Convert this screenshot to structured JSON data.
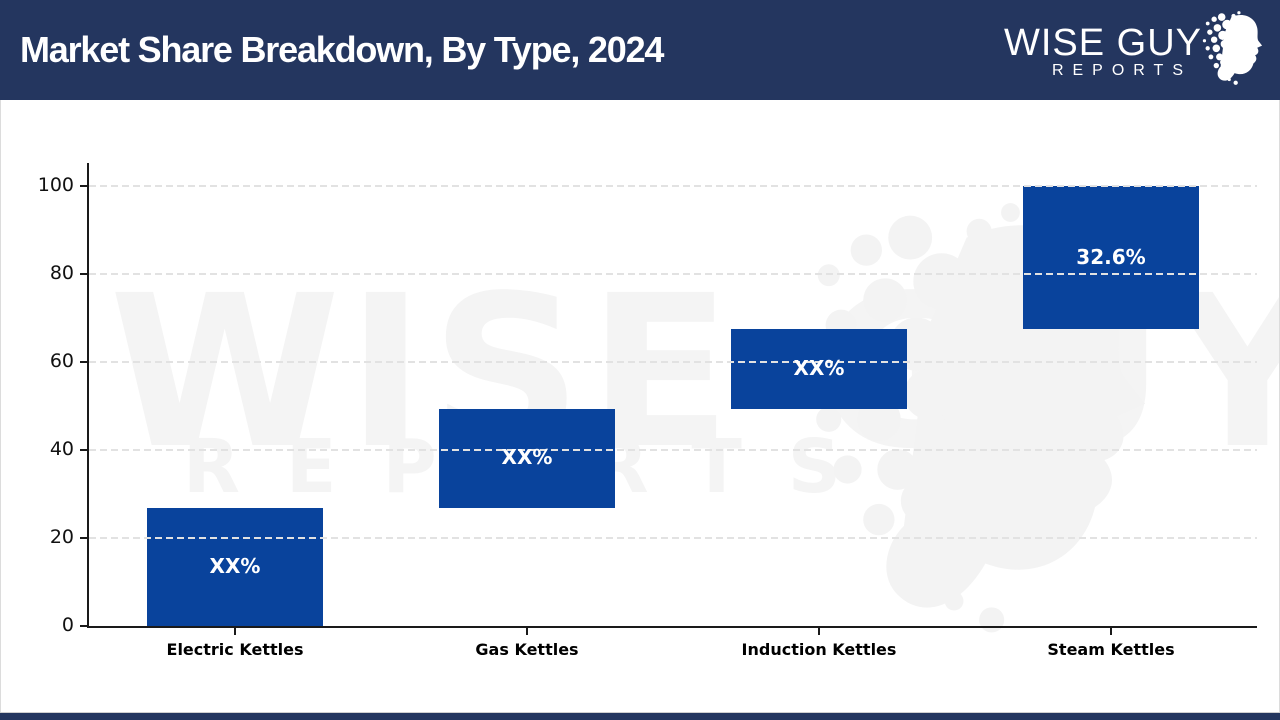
{
  "header": {
    "title": "Market Share Breakdown, By Type, 2024",
    "logo": {
      "line1": "WISE GUY",
      "line2": "REPORTS"
    }
  },
  "colors": {
    "header_navy": "#24365f",
    "bar_blue": "#09439c",
    "gridline": "#e2e2e2",
    "axis": "#1a1a1a",
    "watermark": "#f4f4f4",
    "title_text": "#ffffff",
    "bar_label_text": "#ffffff"
  },
  "watermark": {
    "line1": "WISE GUY",
    "line2": "REPORTS"
  },
  "chart_data": {
    "type": "bar",
    "subtype": "floating-waterfall",
    "title": "Market Share Breakdown, By Type, 2024",
    "categories": [
      "Electric Kettles",
      "Gas Kettles",
      "Induction Kettles",
      "Steam Kettles"
    ],
    "segments": [
      {
        "category": "Electric Kettles",
        "from": 0,
        "to": 26.9,
        "label": "XX%"
      },
      {
        "category": "Gas Kettles",
        "from": 26.9,
        "to": 49.3,
        "label": "XX%"
      },
      {
        "category": "Induction Kettles",
        "from": 49.3,
        "to": 67.4,
        "label": "XX%"
      },
      {
        "category": "Steam Kettles",
        "from": 67.4,
        "to": 100,
        "label": "32.6%"
      }
    ],
    "xlabel": "",
    "ylabel": "",
    "ylim": [
      0,
      100
    ],
    "yticks": [
      0,
      20,
      40,
      60,
      80,
      100
    ],
    "ytick_labels": [
      "0",
      "20",
      "40",
      "60",
      "80",
      "100"
    ],
    "grid": "horizontal-dashed",
    "grid_above_bars": true,
    "legend": "none"
  }
}
